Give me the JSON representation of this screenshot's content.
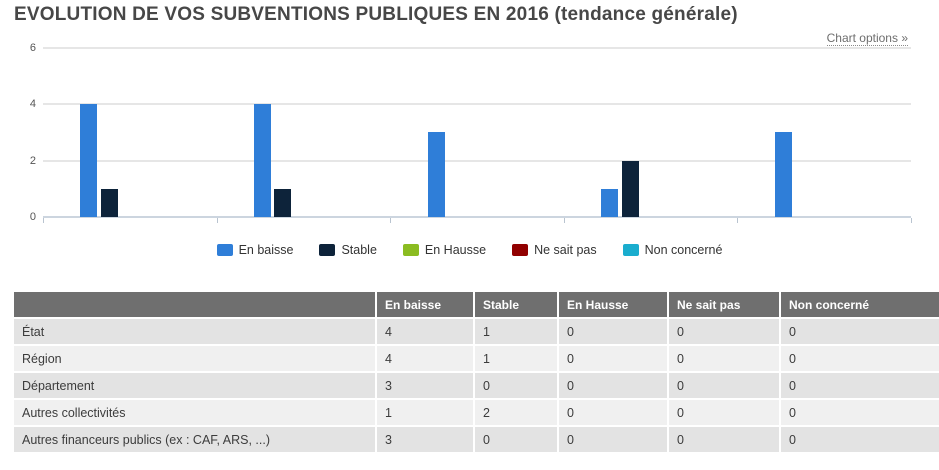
{
  "header": {
    "title": "EVOLUTION DE VOS SUBVENTIONS PUBLIQUES EN 2016 (tendance générale)",
    "chart_options_label": "Chart options »"
  },
  "colors": {
    "en_baisse": "#2f7ed8",
    "stable": "#0d233a",
    "en_hausse": "#8bbc21",
    "ne_sait_pas": "#910000",
    "non_concerne": "#1aadce",
    "table_header_bg": "#6f6f6f",
    "row_dark": "#e3e3e3",
    "row_light": "#f0f0f0",
    "gridline": "#e6e6e6",
    "axis_line": "#ccd5df"
  },
  "chart_data": {
    "type": "bar",
    "title": "EVOLUTION DE VOS SUBVENTIONS PUBLIQUES EN 2016 (tendance générale)",
    "categories": [
      "État",
      "Région",
      "Département",
      "Autres collectivités",
      "Autres financeurs publics (ex : CAF, ARS, ...)"
    ],
    "series": [
      {
        "name": "En baisse",
        "color": "#2f7ed8",
        "values": [
          4,
          4,
          3,
          1,
          3
        ]
      },
      {
        "name": "Stable",
        "color": "#0d233a",
        "values": [
          1,
          1,
          0,
          2,
          0
        ]
      },
      {
        "name": "En Hausse",
        "color": "#8bbc21",
        "values": [
          0,
          0,
          0,
          0,
          0
        ]
      },
      {
        "name": "Ne sait pas",
        "color": "#910000",
        "values": [
          0,
          0,
          0,
          0,
          0
        ]
      },
      {
        "name": "Non concerné",
        "color": "#1aadce",
        "values": [
          0,
          0,
          0,
          0,
          0
        ]
      }
    ],
    "xlabel": "",
    "ylabel": "",
    "ylim": [
      0,
      6
    ],
    "yticks": [
      0,
      2,
      4,
      6
    ],
    "grid": true,
    "x_tick_labels_visible": false,
    "legend_position": "bottom"
  },
  "table": {
    "columns": [
      "En baisse",
      "Stable",
      "En Hausse",
      "Ne sait pas",
      "Non concerné"
    ],
    "rows": [
      {
        "label": "État",
        "values": [
          4,
          1,
          0,
          0,
          0
        ]
      },
      {
        "label": "Région",
        "values": [
          4,
          1,
          0,
          0,
          0
        ]
      },
      {
        "label": "Département",
        "values": [
          3,
          0,
          0,
          0,
          0
        ]
      },
      {
        "label": "Autres collectivités",
        "values": [
          1,
          2,
          0,
          0,
          0
        ]
      },
      {
        "label": "Autres financeurs publics (ex : CAF, ARS, ...)",
        "values": [
          3,
          0,
          0,
          0,
          0
        ]
      }
    ]
  }
}
